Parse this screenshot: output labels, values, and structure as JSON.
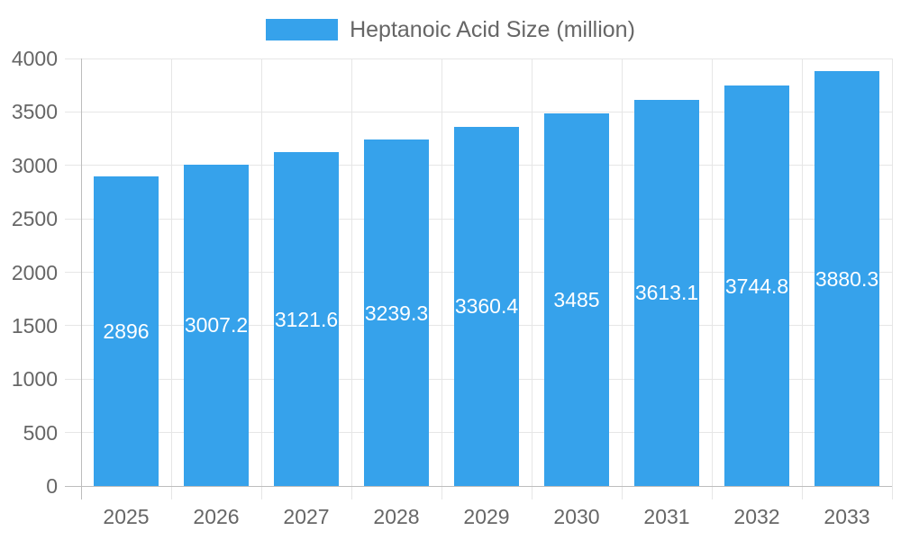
{
  "chart_data": {
    "type": "bar",
    "title": "",
    "legend": {
      "label": "Heptanoic Acid Size (million)",
      "position": "top"
    },
    "categories": [
      "2025",
      "2026",
      "2027",
      "2028",
      "2029",
      "2030",
      "2031",
      "2032",
      "2033"
    ],
    "series": [
      {
        "name": "Heptanoic Acid Size (million)",
        "values": [
          2896,
          3007.2,
          3121.6,
          3239.3,
          3360.4,
          3485,
          3613.1,
          3744.8,
          3880.3
        ]
      }
    ],
    "value_labels": [
      "2896",
      "3007.2",
      "3121.6",
      "3239.3",
      "3360.4",
      "3485",
      "3613.1",
      "3744.8",
      "3880.3"
    ],
    "xlabel": "",
    "ylabel": "",
    "ylim": [
      0,
      4000
    ],
    "ytick_step": 500,
    "yticks": [
      "0",
      "500",
      "1000",
      "1500",
      "2000",
      "2500",
      "3000",
      "3500",
      "4000"
    ],
    "grid": true,
    "value_label_position": "center",
    "colors": {
      "bar": "#36A2EB",
      "bar_label": "#FFFFFF",
      "axis_text": "#666666",
      "gridline": "#E6E6E6",
      "axis_line": "#BDBDBD",
      "background": "#FFFFFF"
    }
  }
}
